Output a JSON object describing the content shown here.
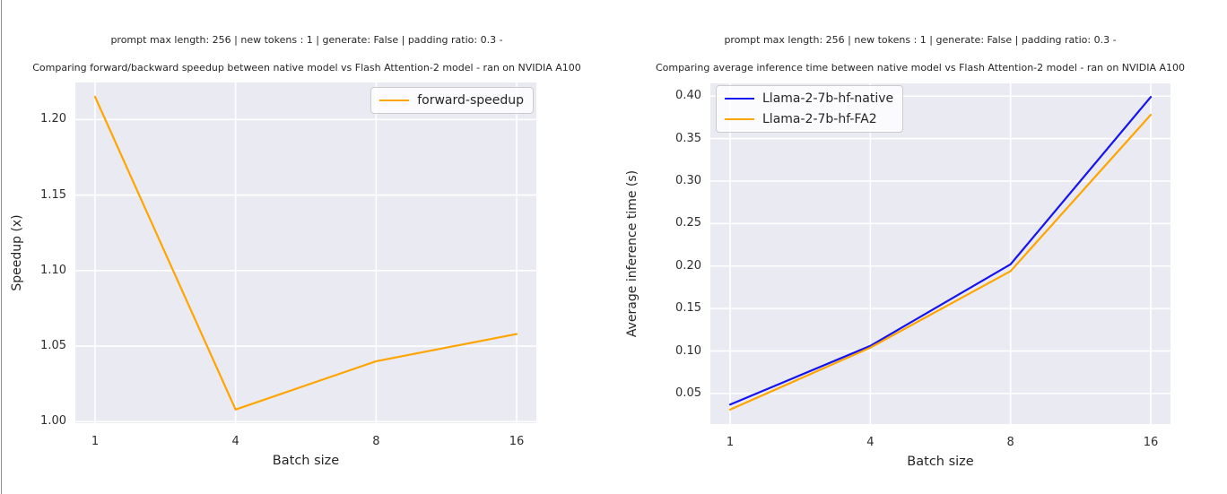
{
  "window": {
    "left_border_color": "#8d8d95"
  },
  "chart_data": [
    {
      "type": "line",
      "title_line1": "prompt max length: 256 | new tokens : 1 | generate: False | padding ratio: 0.3 -",
      "title_line2": "Comparing forward/backward speedup between native model vs Flash Attention-2 model - ran on NVIDIA A100",
      "xlabel": "Batch size",
      "ylabel": "Speedup (x)",
      "x_categories": [
        "1",
        "4",
        "8",
        "16"
      ],
      "x_values": [
        1,
        4,
        8,
        16
      ],
      "x_spacing": "even",
      "ylim": [
        0.999,
        1.2245
      ],
      "yticks": [
        "1.00",
        "1.05",
        "1.10",
        "1.15",
        "1.20"
      ],
      "ytick_values": [
        1.0,
        1.05,
        1.1,
        1.15,
        1.2
      ],
      "grid": true,
      "legend_position": "top-right",
      "colors": {
        "plot_bg": "#eaeaf2",
        "grid": "#ffffff"
      },
      "series": [
        {
          "name": "forward-speedup",
          "color": "#ffa500",
          "values": [
            1.215,
            1.008,
            1.04,
            1.058
          ]
        }
      ]
    },
    {
      "type": "line",
      "title_line1": "prompt max length: 256 | new tokens : 1 | generate: False | padding ratio: 0.3 -",
      "title_line2": "Comparing average inference time between native model vs Flash Attention-2 model - ran on NVIDIA A100",
      "xlabel": "Batch size",
      "ylabel": "Average inference time (s)",
      "x_categories": [
        "1",
        "4",
        "8",
        "16"
      ],
      "x_values": [
        1,
        4,
        8,
        16
      ],
      "x_spacing": "even",
      "ylim": [
        0.014,
        0.415
      ],
      "yticks": [
        "0.05",
        "0.10",
        "0.15",
        "0.20",
        "0.25",
        "0.30",
        "0.35",
        "0.40"
      ],
      "ytick_values": [
        0.05,
        0.1,
        0.15,
        0.2,
        0.25,
        0.3,
        0.35,
        0.4
      ],
      "grid": true,
      "legend_position": "top-left",
      "colors": {
        "plot_bg": "#eaeaf2",
        "grid": "#ffffff"
      },
      "series": [
        {
          "name": "Llama-2-7b-hf-native",
          "color": "#1414f0",
          "values": [
            0.037,
            0.106,
            0.202,
            0.399
          ]
        },
        {
          "name": "Llama-2-7b-hf-FA2",
          "color": "#ffa500",
          "values": [
            0.031,
            0.104,
            0.194,
            0.378
          ]
        }
      ]
    }
  ]
}
